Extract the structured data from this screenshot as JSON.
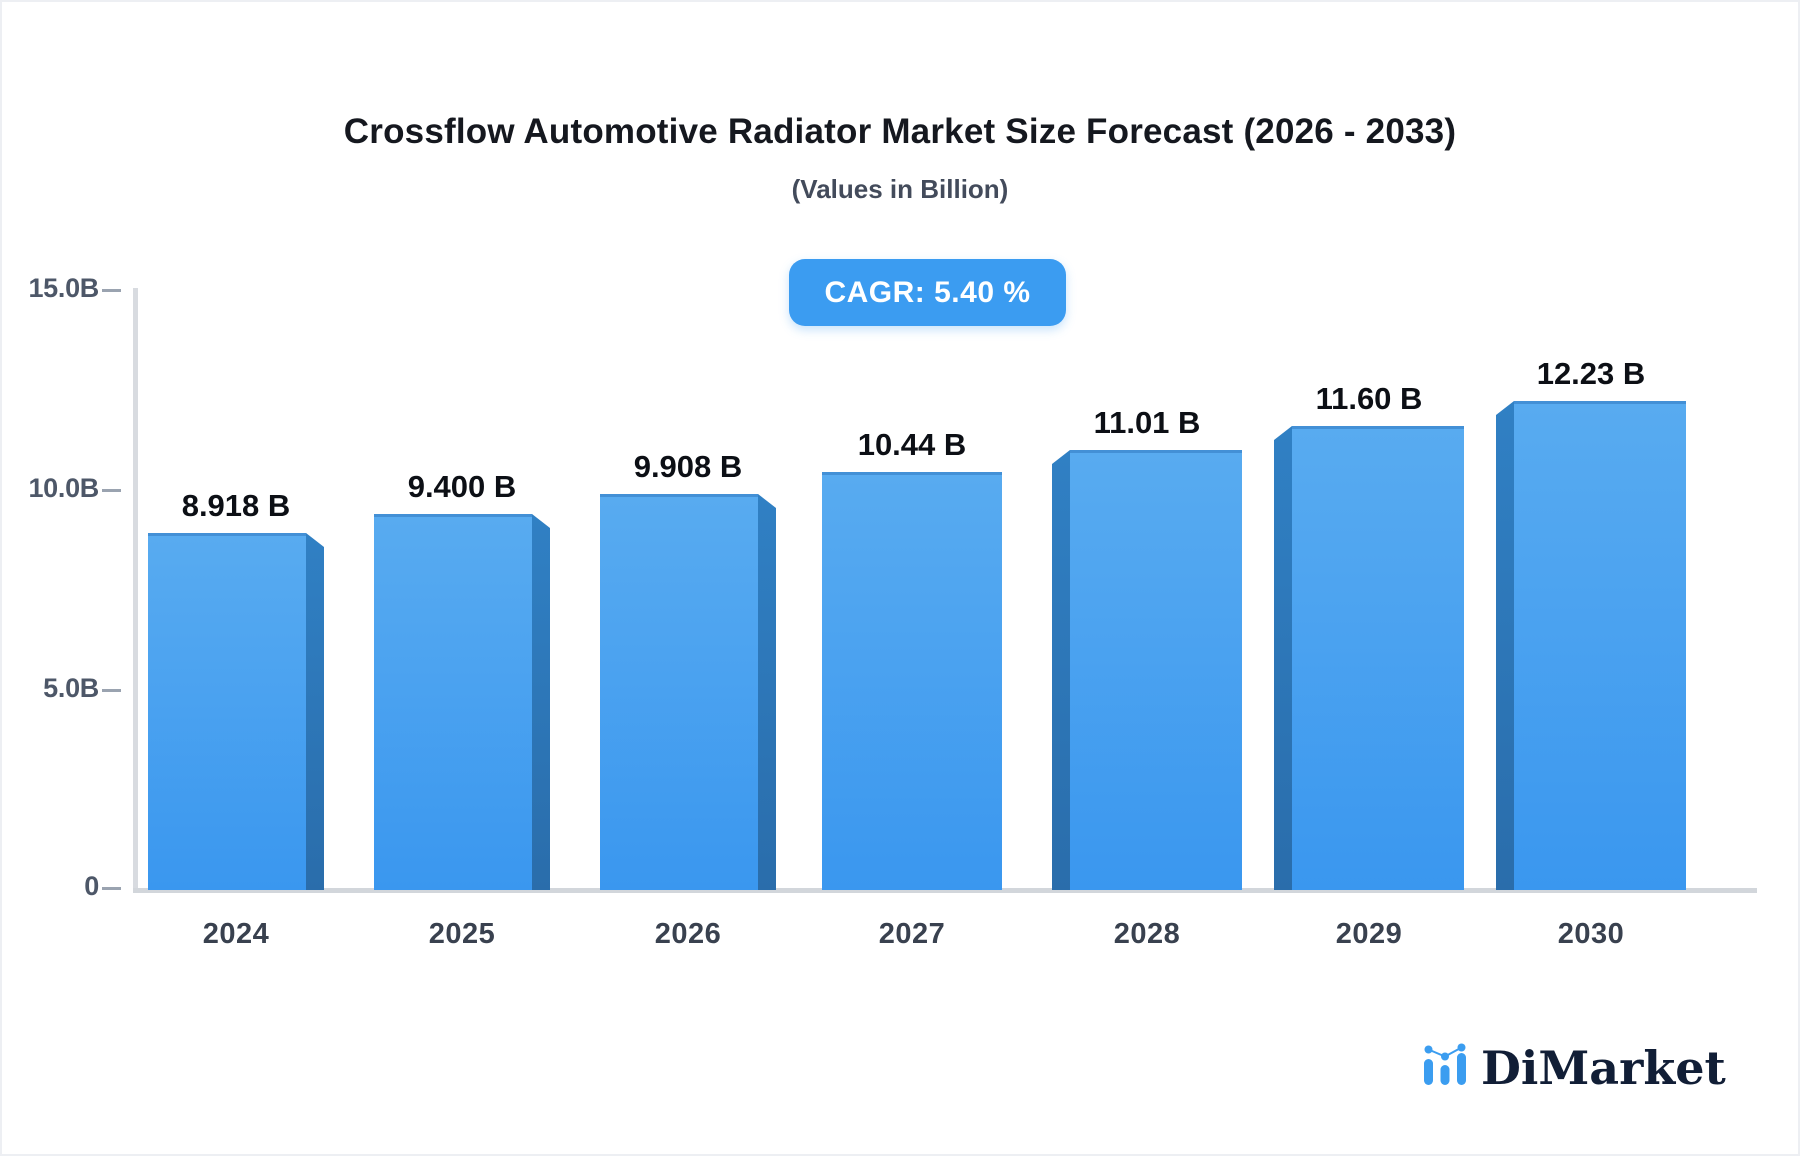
{
  "header": {
    "title": "Crossflow Automotive Radiator Market Size Forecast (2026 - 2033)",
    "subtitle": "(Values in Billion)",
    "cagr_badge": "CAGR: 5.40 %"
  },
  "chart_data": {
    "type": "bar",
    "title": "Crossflow Automotive Radiator Market Size Forecast (2026 - 2033)",
    "subtitle": "(Values in Billion)",
    "unit": "Billion",
    "cagr": "5.40 %",
    "categories": [
      "2024",
      "2025",
      "2026",
      "2027",
      "2028",
      "2029",
      "2030"
    ],
    "values": [
      8.918,
      9.4,
      9.908,
      10.44,
      11.01,
      11.6,
      12.23
    ],
    "value_labels": [
      "8.918 B",
      "9.400 B",
      "9.908 B",
      "10.44 B",
      "11.01 B",
      "11.60 B",
      "12.23 B"
    ],
    "ylim": [
      0,
      15
    ],
    "ytick_labels": [
      "15.0B",
      "10.0B",
      "5.0B",
      "0"
    ],
    "grid": false,
    "legend": false,
    "bar_style": "3d-extruded",
    "colors": {
      "bar_top": "#58abf0",
      "bar_bottom": "#3a97ef",
      "bar_side": "#2b72b4",
      "badge": "#3b9cf1",
      "axis": "#d5d8dd",
      "tick": "#9aa3b0",
      "ylabel_text": "#4d5768",
      "xlabel_text": "#39414f",
      "value_label_text": "#0c0f15"
    }
  },
  "footer": {
    "brand": "DiMarket"
  }
}
